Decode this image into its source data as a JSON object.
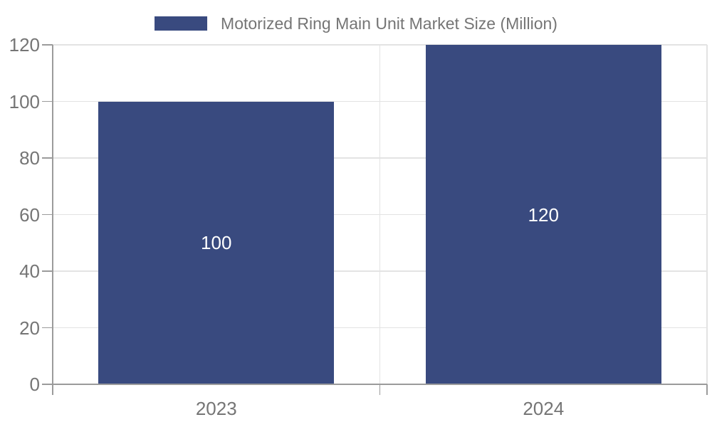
{
  "chart": {
    "legend": {
      "label": "Motorized Ring Main Unit Market Size (Million)",
      "swatch_color": "#394A7F"
    }
  },
  "chart_data": {
    "type": "bar",
    "title": "Motorized Ring Main Unit Market Size (Million)",
    "categories": [
      "2023",
      "2024"
    ],
    "series": [
      {
        "name": "Motorized Ring Main Unit Market Size (Million)",
        "values": [
          100,
          120
        ]
      }
    ],
    "bar_value_labels": [
      "100",
      "120"
    ],
    "ylim": [
      0,
      120
    ],
    "yticks": [
      0,
      20,
      40,
      60,
      80,
      100,
      120
    ],
    "grid": true,
    "legend_position": "top-center",
    "colors": {
      "bar": "#394A7F",
      "axis_line": "#9b9b9b",
      "gridline": "#e3e3e3",
      "tick_label": "#757575",
      "bar_label": "#ffffff",
      "legend_text": "#757575"
    }
  }
}
